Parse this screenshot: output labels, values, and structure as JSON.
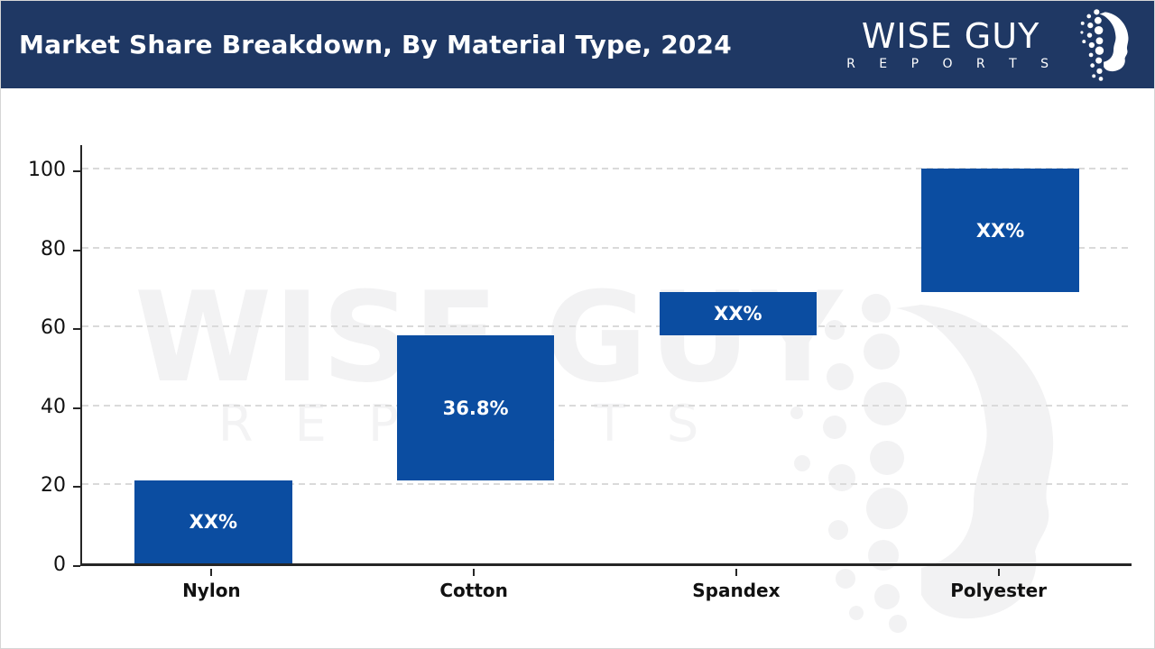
{
  "header": {
    "title": "Market Share Breakdown, By Material Type, 2024",
    "bg_color": "#1f3864",
    "logo": {
      "line1": "WISE GUY",
      "line2": "R E P O R T S"
    }
  },
  "watermark": {
    "line1": "WISE GUY",
    "line2": "REPORTS"
  },
  "chart_data": {
    "type": "bar",
    "variant": "floating-waterfall",
    "title": "Market Share Breakdown, By Material Type, 2024",
    "categories": [
      "Nylon",
      "Cotton",
      "Spandex",
      "Polyester"
    ],
    "segments": [
      {
        "category": "Nylon",
        "base": 0,
        "top": 21,
        "label": "XX%"
      },
      {
        "category": "Cotton",
        "base": 21,
        "top": 57.8,
        "label": "36.8%"
      },
      {
        "category": "Spandex",
        "base": 57.8,
        "top": 68.8,
        "label": "XX%"
      },
      {
        "category": "Polyester",
        "base": 68.8,
        "top": 100,
        "label": "XX%"
      }
    ],
    "yticks": [
      0,
      20,
      40,
      60,
      80,
      100
    ],
    "ylim": [
      0,
      106
    ],
    "bar_width_frac": 0.6,
    "bar_color": "#0b4da1",
    "bar_label_color": "#ffffff",
    "axis_color": "#262626",
    "grid": {
      "horizontal": true,
      "style": "dashed",
      "color": "#dadada"
    },
    "legend": "none",
    "xlabel": "",
    "ylabel": ""
  }
}
